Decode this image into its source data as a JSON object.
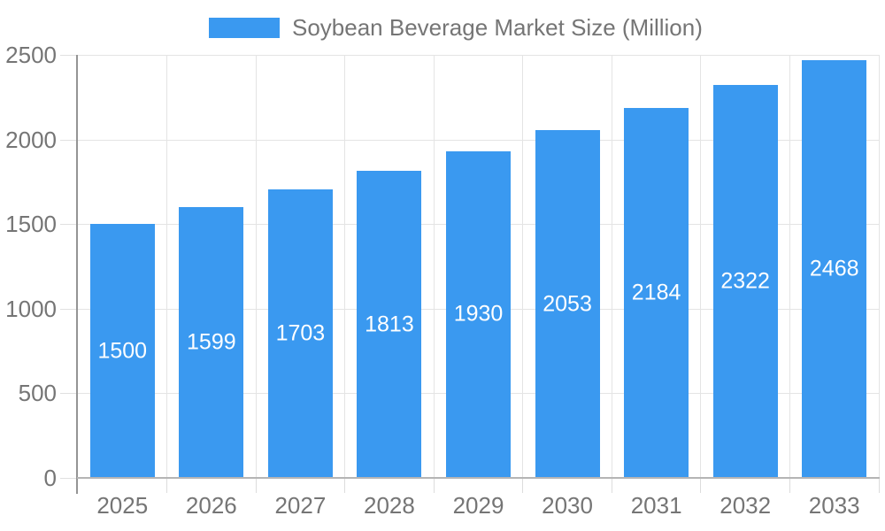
{
  "chart_data": {
    "type": "bar",
    "title": "",
    "legend": "Soybean Beverage Market Size (Million)",
    "legend_position": "top-center",
    "categories": [
      "2025",
      "2026",
      "2027",
      "2028",
      "2029",
      "2030",
      "2031",
      "2032",
      "2033"
    ],
    "values": [
      1500,
      1599,
      1703,
      1813,
      1930,
      2053,
      2184,
      2322,
      2468
    ],
    "xlabel": "",
    "ylabel": "",
    "ylim": [
      0,
      2500
    ],
    "yticks": [
      0,
      500,
      1000,
      1500,
      2000,
      2500
    ],
    "grid": true,
    "colors": {
      "bar": "#3a99f0",
      "value_label": "#ffffff",
      "axis_label": "#757575",
      "gridline": "#e4e4e4",
      "y_axis_line": "#949494",
      "x_axis_line": "#b5b5b5"
    }
  }
}
